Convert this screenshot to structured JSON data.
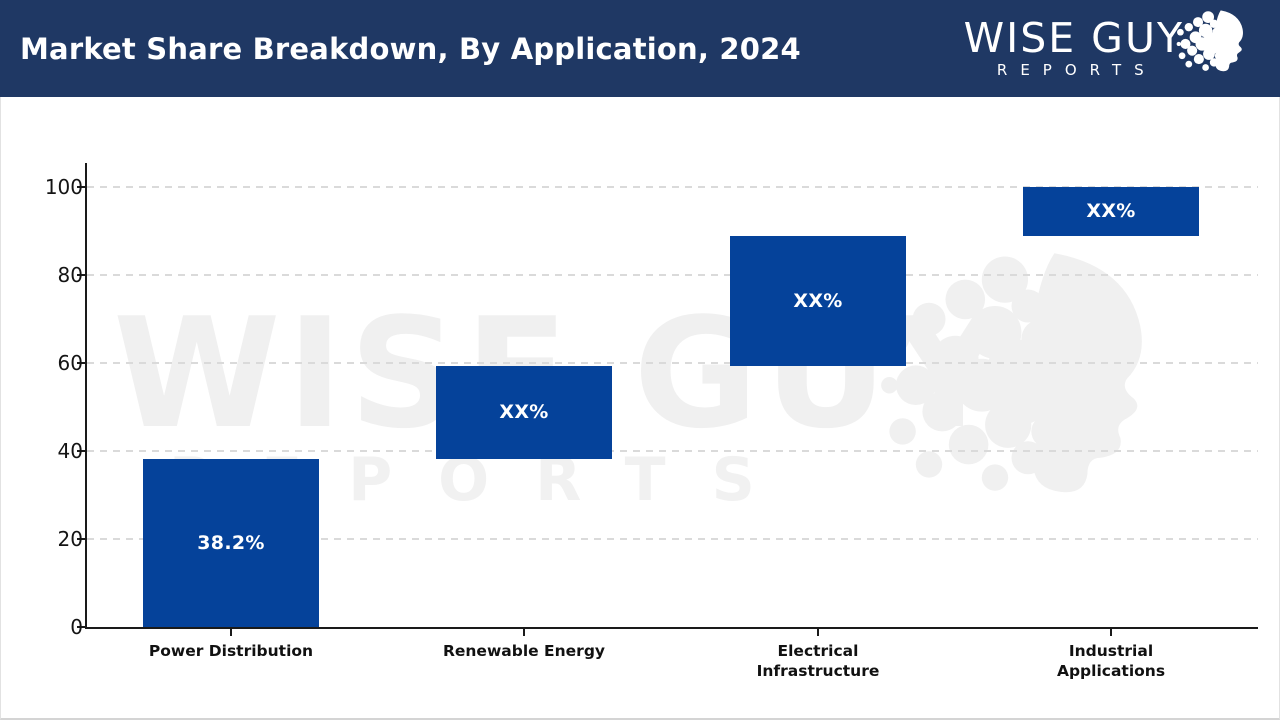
{
  "header": {
    "title": "Market Share Breakdown, By Application, 2024",
    "bg_color": "#1f3864",
    "logo": {
      "line1": "WISE GUY",
      "line2": "REPORTS"
    }
  },
  "watermark": {
    "line1": "WISE GUY",
    "line2": "REPORTS"
  },
  "chart_data": {
    "type": "bar",
    "subtype": "waterfall",
    "title": "Market Share Breakdown, By Application, 2024",
    "xlabel": "",
    "ylabel": "",
    "ylim": [
      0,
      105
    ],
    "yticks": [
      0,
      20,
      40,
      60,
      80,
      100
    ],
    "grid": "horizontal-dashed",
    "bar_color": "#05429a",
    "categories": [
      "Power Distribution",
      "Renewable Energy",
      "Electrical Infrastructure",
      "Industrial Applications"
    ],
    "segments": [
      {
        "name": "Power Distribution",
        "display": "Power Distribution",
        "start": 0,
        "end": 38.2,
        "value": 38.2,
        "value_label": "38.2%"
      },
      {
        "name": "Renewable Energy",
        "display": "Renewable Energy",
        "start": 38.2,
        "end": 59.4,
        "value": 21.2,
        "value_label": "XX%"
      },
      {
        "name": "Electrical Infrastructure",
        "display": "Electrical\nInfrastructure",
        "start": 59.4,
        "end": 88.9,
        "value": 29.5,
        "value_label": "XX%"
      },
      {
        "name": "Industrial Applications",
        "display": "Industrial\nApplications",
        "start": 88.9,
        "end": 100,
        "value": 11.1,
        "value_label": "XX%"
      }
    ]
  }
}
